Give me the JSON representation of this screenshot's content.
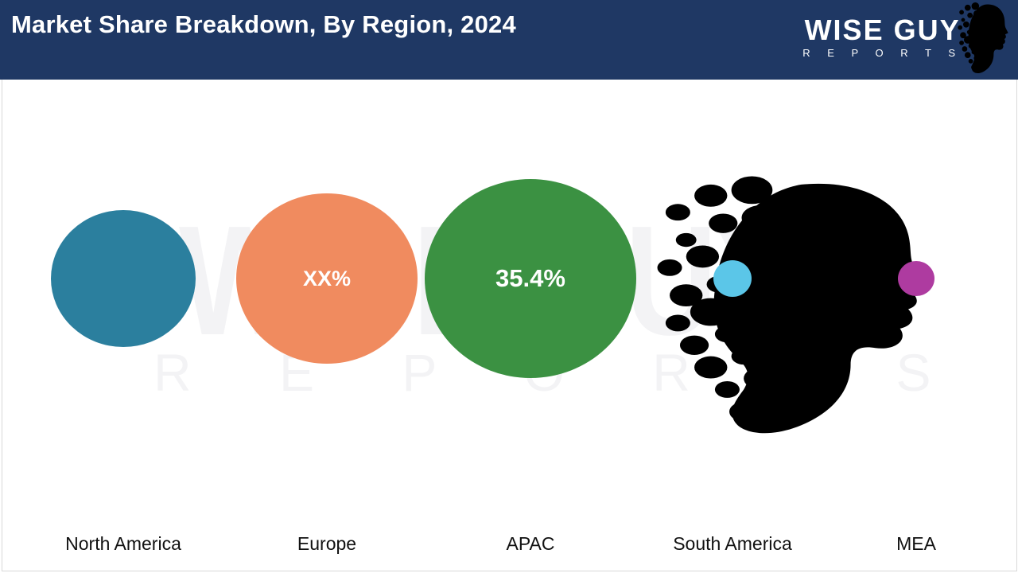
{
  "header": {
    "title": "Market Share Breakdown, By Region, 2024",
    "bg_color": "#1F3864",
    "logo": {
      "line1": "WISE GUY",
      "line2": "R E P O R T S"
    }
  },
  "watermark": {
    "line1": "WISE GUY",
    "line2": "R E P O R T S"
  },
  "chart_data": {
    "type": "bubble",
    "title": "Market Share Breakdown, By Region, 2024",
    "categories": [
      "North America",
      "Europe",
      "APAC",
      "South America",
      "MEA"
    ],
    "bubbles": [
      {
        "label": "North America",
        "value_label": "",
        "share_pct": null,
        "color": "#2B7F9E",
        "radius_px": 91
      },
      {
        "label": "Europe",
        "value_label": "XX%",
        "share_pct": null,
        "color": "#F08B5F",
        "radius_px": 114
      },
      {
        "label": "APAC",
        "value_label": "35.4%",
        "share_pct": 35.4,
        "color": "#3B9142",
        "radius_px": 133
      },
      {
        "label": "South America",
        "value_label": "",
        "share_pct": null,
        "color": "#5BC6E8",
        "radius_px": 24
      },
      {
        "label": "MEA",
        "value_label": "",
        "share_pct": null,
        "color": "#AE3BA0",
        "radius_px": 23
      }
    ],
    "value_label_color": "#FFFFFF",
    "category_label_color": "#111111",
    "legend_position": "bottom-category-row",
    "grid": false,
    "xlabel": "",
    "ylabel": ""
  }
}
